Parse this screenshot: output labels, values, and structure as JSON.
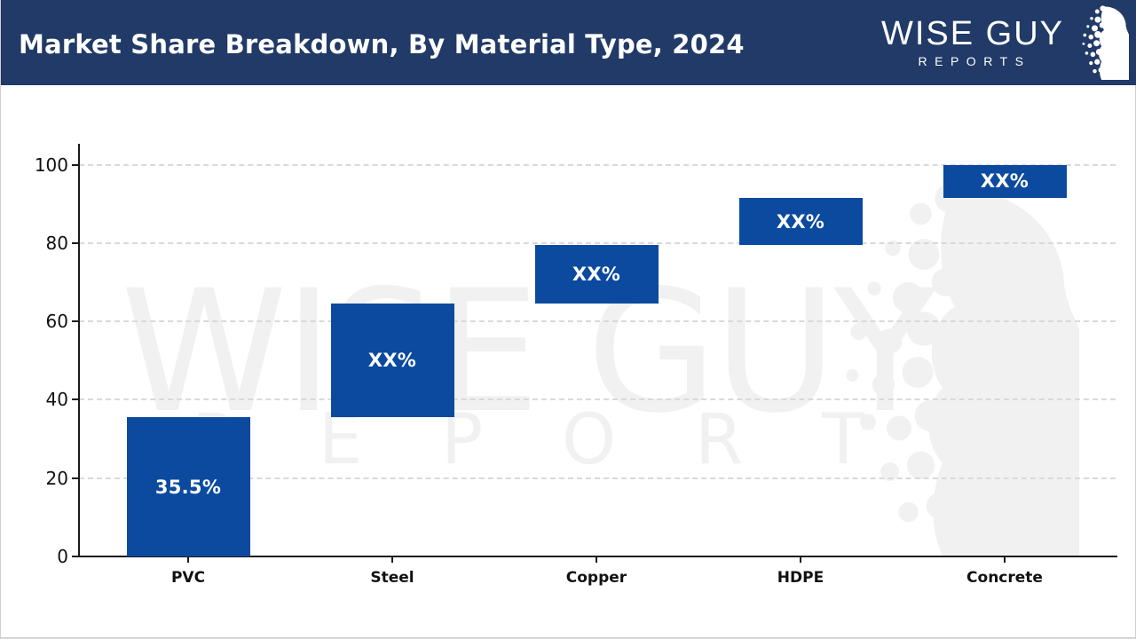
{
  "header": {
    "title": "Market Share Breakdown, By Material Type, 2024",
    "logo": {
      "line1": "WISE GUY",
      "line2": "REPORTS"
    }
  },
  "watermark": {
    "line1": "WISE GUY",
    "line2": "R E P O R T S"
  },
  "colors": {
    "header_bg": "#213A67",
    "bar": "#0B4A9F",
    "grid": "#D9D9D9",
    "axis": "#1A1A1A",
    "watermark": "#F1F1F1",
    "title_text": "#FFFFFF"
  },
  "chart_data": {
    "type": "bar",
    "subtype": "waterfall",
    "title": "Market Share Breakdown, By Material Type, 2024",
    "categories": [
      "PVC",
      "Steel",
      "Copper",
      "HDPE",
      "Concrete"
    ],
    "segments": [
      {
        "category": "PVC",
        "start": 0,
        "end": 35.5,
        "label": "35.5%"
      },
      {
        "category": "Steel",
        "start": 35.5,
        "end": 64.5,
        "label": "XX%"
      },
      {
        "category": "Copper",
        "start": 64.5,
        "end": 79.5,
        "label": "XX%"
      },
      {
        "category": "HDPE",
        "start": 79.5,
        "end": 91.5,
        "label": "XX%"
      },
      {
        "category": "Concrete",
        "start": 91.5,
        "end": 100,
        "label": "XX%"
      }
    ],
    "xlabel": "",
    "ylabel": "",
    "ylim": [
      0,
      100
    ],
    "yticks": [
      0,
      20,
      40,
      60,
      80,
      100
    ],
    "grid": "horizontal-dashed",
    "legend": "none",
    "bar_color": "#0B4A9F"
  }
}
